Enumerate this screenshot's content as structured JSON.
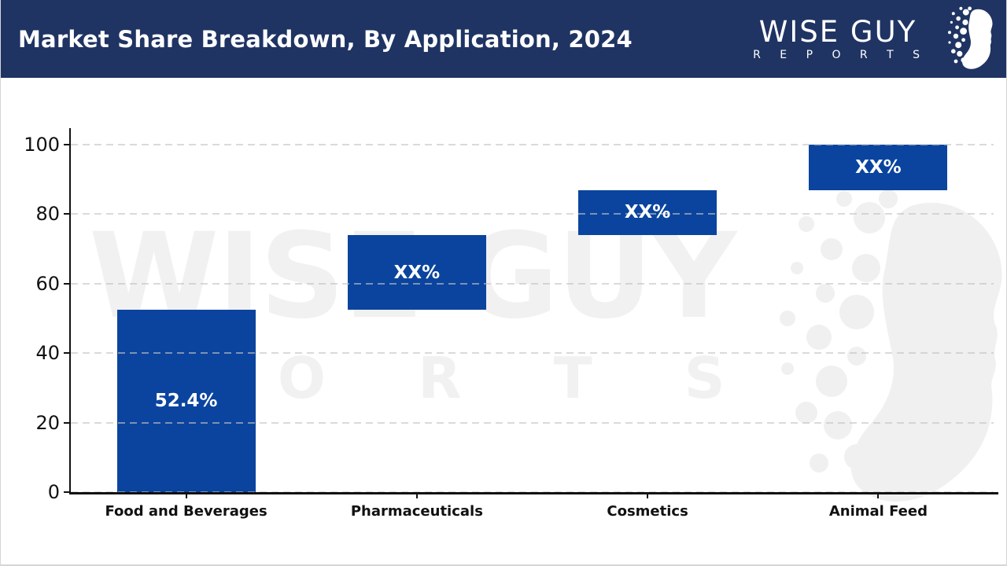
{
  "header": {
    "title": "Market Share Breakdown, By Application, 2024",
    "bg_color": "#1f3463",
    "logo": {
      "line1": "WISE GUY",
      "line2": "R E P O R T S"
    }
  },
  "watermark": {
    "line1": "WISE GUY",
    "line2": "P O R T S"
  },
  "chart_data": {
    "type": "bar",
    "subtype": "waterfall",
    "title": "Market Share Breakdown, By Application, 2024",
    "xlabel": "",
    "ylabel": "",
    "categories": [
      "Food and Beverages",
      "Pharmaceuticals",
      "Cosmetics",
      "Animal Feed"
    ],
    "segments": [
      {
        "category": "Food and Beverages",
        "start": 0,
        "end": 52.4,
        "label": "52.4%"
      },
      {
        "category": "Pharmaceuticals",
        "start": 52.4,
        "end": 74,
        "label": "XX%"
      },
      {
        "category": "Cosmetics",
        "start": 74,
        "end": 87,
        "label": "XX%"
      },
      {
        "category": "Animal Feed",
        "start": 87,
        "end": 100,
        "label": "XX%"
      }
    ],
    "yticks": [
      0,
      20,
      40,
      60,
      80,
      100
    ],
    "ylim": [
      0,
      105
    ],
    "bar_color": "#0a449e",
    "grid": "horizontal-dashed",
    "legend_position": "none"
  }
}
